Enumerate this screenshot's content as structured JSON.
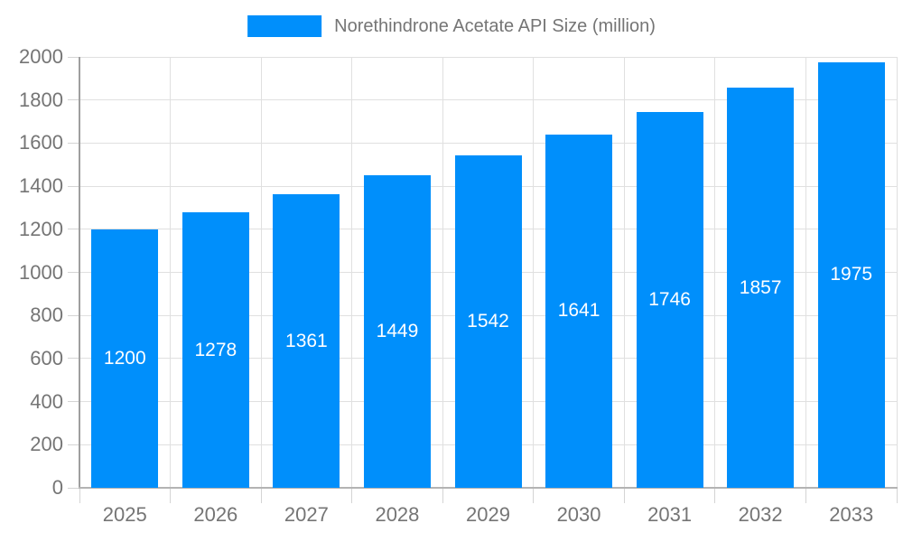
{
  "legend": {
    "items": [
      {
        "label": "Norethindrone Acetate API Size (million)",
        "color": "#008FFB"
      }
    ]
  },
  "chart_data": {
    "type": "bar",
    "title": "Norethindrone Acetate API Size (million)",
    "categories": [
      "2025",
      "2026",
      "2027",
      "2028",
      "2029",
      "2030",
      "2031",
      "2032",
      "2033"
    ],
    "series": [
      {
        "name": "Norethindrone Acetate API Size (million)",
        "color": "#008FFB",
        "values": [
          1200,
          1278,
          1361,
          1449,
          1542,
          1641,
          1746,
          1857,
          1975
        ]
      }
    ],
    "data_labels": [
      "1200",
      "1278",
      "1361",
      "1449",
      "1542",
      "1641",
      "1746",
      "1857",
      "1975"
    ],
    "xlabel": "",
    "ylabel": "",
    "ylim": [
      0,
      2000
    ],
    "ytick_step": 200,
    "ytick_labels": [
      "0",
      "200",
      "400",
      "600",
      "800",
      "1000",
      "1200",
      "1400",
      "1600",
      "1800",
      "2000"
    ],
    "grid": {
      "horizontal": true,
      "vertical": true
    },
    "legend_position": "top",
    "bar_label_position": "inside-center"
  },
  "colors": {
    "bar": "#008FFB",
    "grid": "#e0e0e0",
    "y_axis_line": "#9f9f9f",
    "x_axis_line": "#b3b3b3",
    "tick": "#d4d4d4",
    "axis_text": "#757575",
    "bar_label_text": "#ffffff",
    "background": "#ffffff"
  }
}
